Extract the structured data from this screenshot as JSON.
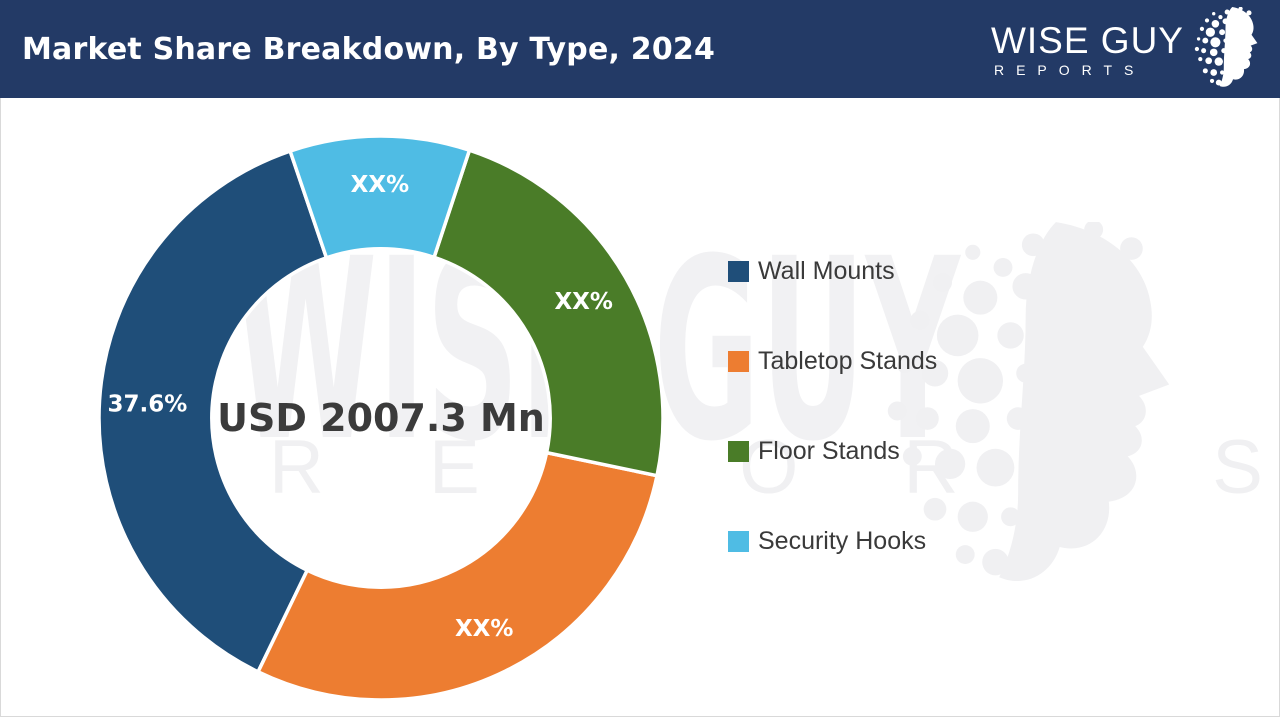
{
  "header": {
    "title": "Market Share Breakdown, By Type, 2024",
    "logo": {
      "name": "WISE GUY",
      "sub": "REPORTS"
    }
  },
  "watermark": {
    "name": "WISE GUY",
    "sub": "R E P O R T S"
  },
  "chart_data": {
    "type": "pie",
    "subtype": "donut",
    "title": "Market Share Breakdown, By Type, 2024",
    "center_label": "USD 2007.3 Mn",
    "legend_position": "right",
    "start_angle_deg": 108.8,
    "direction": "counterclockwise",
    "inner_radius_ratio": 0.6,
    "segments": [
      {
        "name": "Wall Mounts",
        "label": "37.6%",
        "value_pct": 37.6,
        "color": "#1f4e79"
      },
      {
        "name": "Tabletop Stands",
        "label": "XX%",
        "value_pct": 28.9,
        "color": "#ed7d31"
      },
      {
        "name": "Floor Stands",
        "label": "XX%",
        "value_pct": 23.2,
        "color": "#4a7c28"
      },
      {
        "name": "Security Hooks",
        "label": "XX%",
        "value_pct": 10.3,
        "color": "#4fbce4"
      }
    ]
  },
  "colors": {
    "header_bg": "#233a66",
    "center_text": "#3b3b3b",
    "legend_text": "#3a3a3a",
    "watermark": "#f0f0f2",
    "border": "#d9d9d9"
  }
}
